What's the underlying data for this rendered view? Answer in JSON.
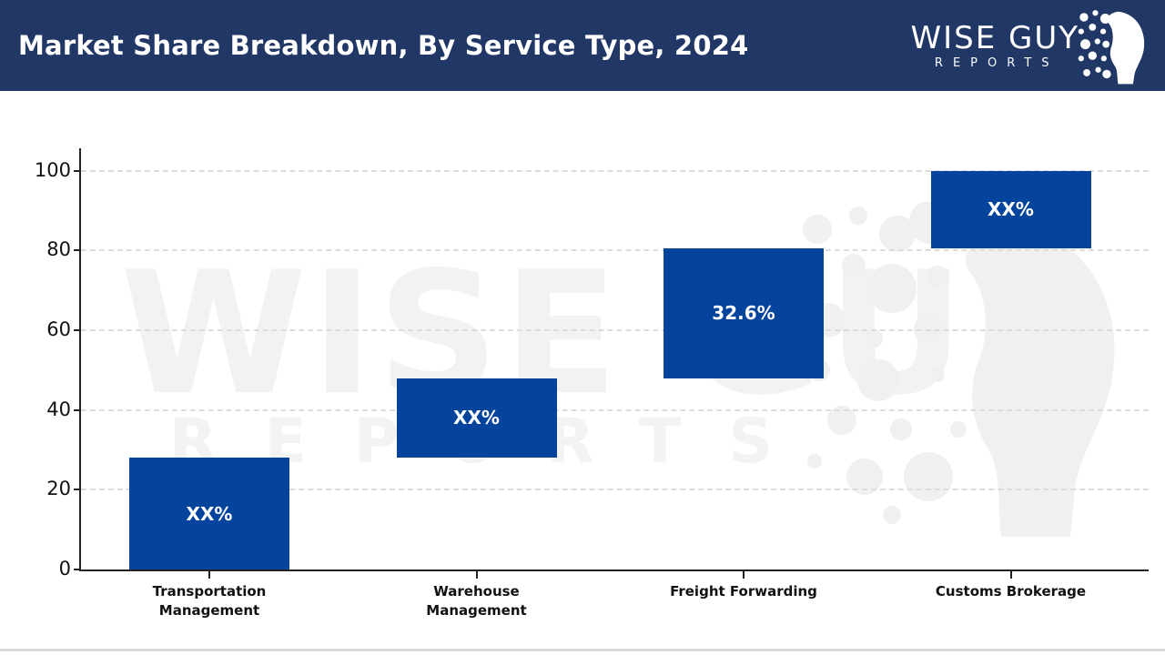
{
  "header": {
    "title": "Market Share Breakdown, By Service Type, 2024",
    "logo": {
      "primary": "WISE GUY",
      "secondary": "REPORTS"
    },
    "bg_color": "#213766"
  },
  "watermark": {
    "primary": "WISE GU",
    "secondary": "REPORTS"
  },
  "chart_data": {
    "type": "bar",
    "subtype": "floating_waterfall",
    "title": "Market Share Breakdown, By Service Type, 2024",
    "categories": [
      "Transportation\nManagement",
      "Warehouse\nManagement",
      "Freight Forwarding",
      "Customs Brokerage"
    ],
    "bars": [
      {
        "category": "Transportation Management",
        "start": 0,
        "end": 28,
        "value": 28,
        "label": "XX%"
      },
      {
        "category": "Warehouse Management",
        "start": 28,
        "end": 48,
        "value": 20,
        "label": "XX%"
      },
      {
        "category": "Freight Forwarding",
        "start": 48,
        "end": 80.6,
        "value": 32.6,
        "label": "32.6%"
      },
      {
        "category": "Customs Brokerage",
        "start": 80.6,
        "end": 100,
        "value": 19.4,
        "label": "XX%"
      }
    ],
    "xlabel": "",
    "ylabel": "",
    "yticks": [
      0,
      20,
      40,
      60,
      80,
      100
    ],
    "ylim": [
      0,
      105
    ],
    "grid": "horizontal-dashed",
    "legend": "none",
    "colors": {
      "bar": "#05449c",
      "bar_label": "#ffffff",
      "grid": "#dcdcdc",
      "axis": "#222222",
      "tick_label": "#111111",
      "header_bg": "#213766",
      "watermark": "#f2f2f2"
    }
  }
}
